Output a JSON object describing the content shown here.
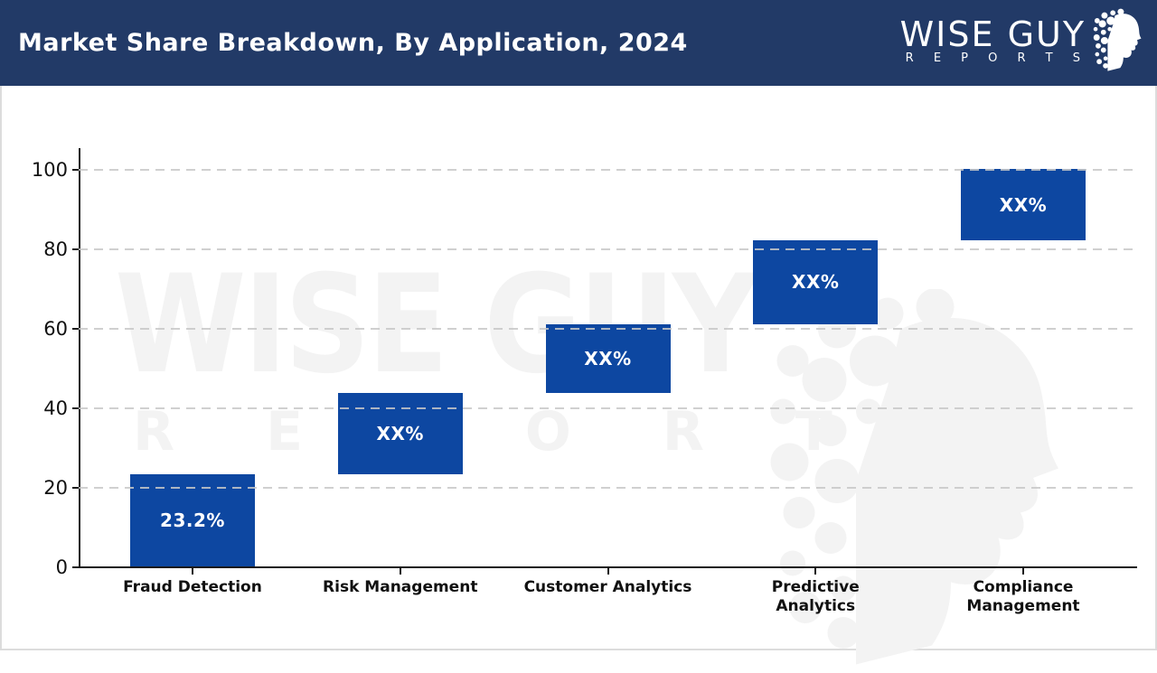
{
  "header": {
    "title": "Market Share Breakdown, By Application, 2024",
    "logo": {
      "brand": "WISE GUY",
      "sub": "R E P O R T S"
    }
  },
  "watermark": {
    "brand": "WISE GUY",
    "sub": "R E P O R T S"
  },
  "chart_data": {
    "type": "bar",
    "variant": "waterfall",
    "title": "Market Share Breakdown, By Application, 2024",
    "categories": [
      "Fraud Detection",
      "Risk Management",
      "Customer Analytics",
      "Predictive Analytics",
      "Compliance Management"
    ],
    "category_lines": [
      [
        "Fraud Detection"
      ],
      [
        "Risk Management"
      ],
      [
        "Customer Analytics"
      ],
      [
        "Predictive",
        "Analytics"
      ],
      [
        "Compliance",
        "Management"
      ]
    ],
    "segments": [
      {
        "category": "Fraud Detection",
        "label": "23.2%",
        "start": 0,
        "end": 23.2
      },
      {
        "category": "Risk Management",
        "label": "XX%",
        "start": 23.2,
        "end": 43.6
      },
      {
        "category": "Customer Analytics",
        "label": "XX%",
        "start": 43.6,
        "end": 61
      },
      {
        "category": "Predictive Analytics",
        "label": "XX%",
        "start": 61,
        "end": 82
      },
      {
        "category": "Compliance Management",
        "label": "XX%",
        "start": 82,
        "end": 100
      }
    ],
    "yticks": [
      0,
      20,
      40,
      60,
      80,
      100
    ],
    "ylim": [
      0,
      105
    ],
    "grid": {
      "axis": "y",
      "style": "dashed",
      "color": "#d9d9d9"
    },
    "legend": "none",
    "bar_color": "#0d47a1",
    "bar_label_color": "#ffffff",
    "axis_color": "#1a1a1a"
  },
  "colors": {
    "header_bg": "#223a67",
    "panel_bg": "#ffffff",
    "frame": "#dcdcdc",
    "watermark": "#f3f3f3",
    "title_text": "#ffffff"
  }
}
